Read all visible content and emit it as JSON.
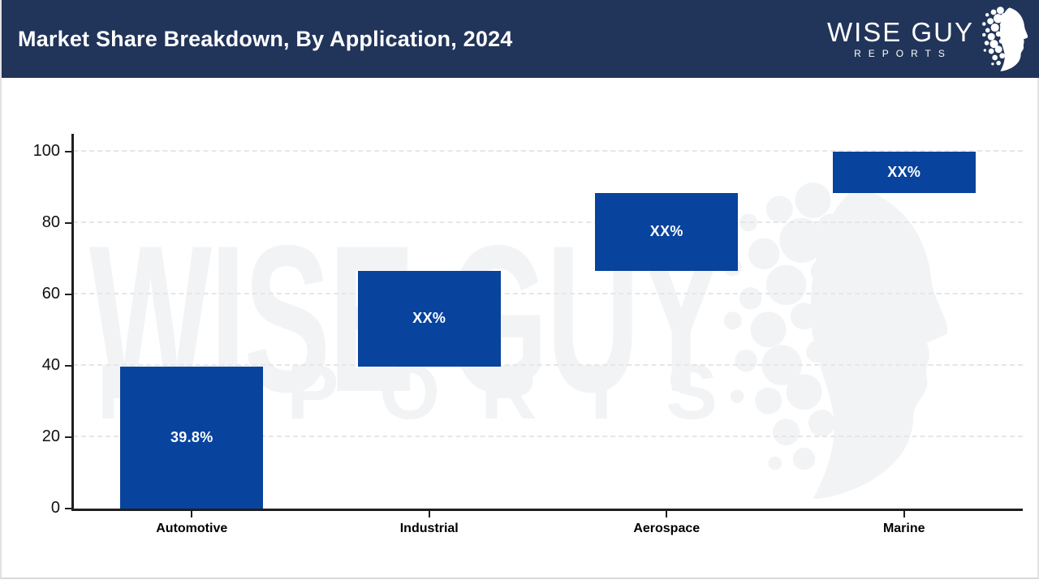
{
  "header": {
    "title": "Market Share Breakdown, By Application, 2024",
    "logo": {
      "wordmark": "WISE GUY",
      "subtext": "REPORTS"
    }
  },
  "watermark": {
    "line1": "WISE GUY",
    "line2": "REPORTS"
  },
  "chart_data": {
    "type": "bar",
    "variant": "waterfall",
    "title": "Market Share Breakdown, By Application, 2024",
    "categories": [
      "Automotive",
      "Industrial",
      "Aerospace",
      "Marine"
    ],
    "segments": [
      {
        "category": "Automotive",
        "label": "39.8%",
        "start": 0,
        "end": 39.8
      },
      {
        "category": "Industrial",
        "label": "XX%",
        "start": 39.8,
        "end": 66.6
      },
      {
        "category": "Aerospace",
        "label": "XX%",
        "start": 66.6,
        "end": 88.4
      },
      {
        "category": "Marine",
        "label": "XX%",
        "start": 88.4,
        "end": 100
      }
    ],
    "ylim": [
      0,
      100
    ],
    "yticks": [
      0,
      20,
      40,
      60,
      80,
      100
    ],
    "xlabel": "",
    "ylabel": "",
    "grid": "horizontal-dashed",
    "legend": "none",
    "bar_color": "#08439d",
    "bar_label_color": "#ffffff",
    "header_color": "#213459"
  }
}
